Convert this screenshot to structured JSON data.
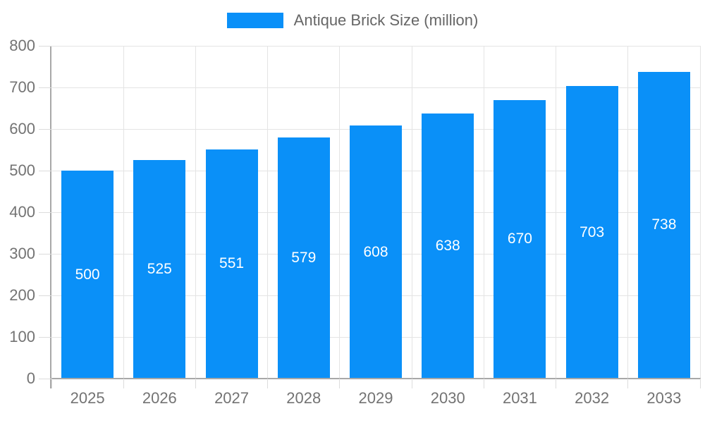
{
  "chart_data": {
    "type": "bar",
    "title": "Antique Brick Size (million)",
    "categories": [
      "2025",
      "2026",
      "2027",
      "2028",
      "2029",
      "2030",
      "2031",
      "2032",
      "2033"
    ],
    "values": [
      500,
      525,
      551,
      579,
      608,
      638,
      670,
      703,
      738
    ],
    "series": [
      {
        "name": "Antique Brick Size (million)",
        "values": [
          500,
          525,
          551,
          579,
          608,
          638,
          670,
          703,
          738
        ]
      }
    ],
    "xlabel": "",
    "ylabel": "",
    "ylim": [
      0,
      800
    ],
    "ytick_step": 100,
    "yticks": [
      0,
      100,
      200,
      300,
      400,
      500,
      600,
      700,
      800
    ],
    "grid": true,
    "legend_position": "top-center",
    "value_label_position": "inside-center",
    "colors": {
      "bar": "#0A90F8",
      "value_label": "#FFFFFF",
      "grid_line": "#E4E4E4",
      "axis_line": "#A8A8A8",
      "tick_label": "#737373",
      "legend_text": "#666666",
      "background": "#FFFFFF"
    }
  }
}
